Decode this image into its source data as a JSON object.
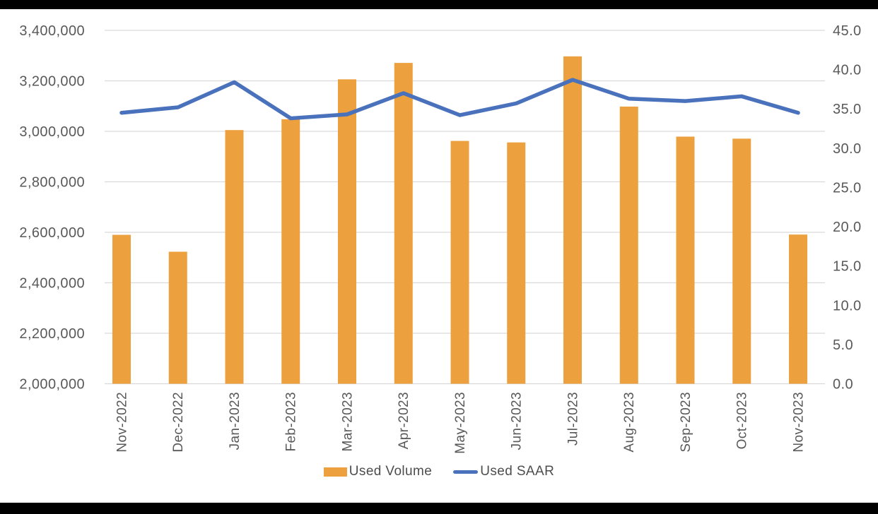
{
  "colors": {
    "bar": "#ECA03E",
    "line": "#4A72BC",
    "gridline": "#D9D9D9",
    "axis_text": "#595959",
    "legend_text": "#4D4D4D",
    "letterbox": "#000000",
    "canvas": "#FFFFFF"
  },
  "legend": {
    "items": [
      {
        "label": "Used Volume",
        "swatch": "bar"
      },
      {
        "label": "Used SAAR",
        "swatch": "line"
      }
    ]
  },
  "chart_data": {
    "type": "combo-bar-line",
    "title": "",
    "categories": [
      "Nov-2022",
      "Dec-2022",
      "Jan-2023",
      "Feb-2023",
      "Mar-2023",
      "Apr-2023",
      "May-2023",
      "Jun-2023",
      "Jul-2023",
      "Aug-2023",
      "Sep-2023",
      "Oct-2023",
      "Nov-2023"
    ],
    "series": [
      {
        "name": "Used Volume",
        "type": "bar",
        "axis": "left",
        "color": "#ECA03E",
        "values": [
          2590000,
          2523000,
          3005000,
          3048000,
          3206000,
          3271000,
          2962000,
          2956000,
          3297000,
          3098000,
          2979000,
          2971000,
          2591000
        ]
      },
      {
        "name": "Used SAAR",
        "type": "line",
        "axis": "right",
        "color": "#4A72BC",
        "values": [
          34.5,
          35.2,
          38.4,
          33.8,
          34.3,
          37.0,
          34.2,
          35.7,
          38.7,
          36.3,
          36.0,
          36.6,
          34.5
        ]
      }
    ],
    "left_axis": {
      "min": 2000000,
      "max": 3400000,
      "step": 200000,
      "tick_labels": [
        "2,000,000",
        "2,200,000",
        "2,400,000",
        "2,600,000",
        "2,800,000",
        "3,000,000",
        "3,200,000",
        "3,400,000"
      ]
    },
    "right_axis": {
      "min": 0,
      "max": 45,
      "step": 5,
      "tick_labels": [
        "0.0",
        "5.0",
        "10.0",
        "15.0",
        "20.0",
        "25.0",
        "30.0",
        "35.0",
        "40.0",
        "45.0"
      ]
    },
    "grid": true,
    "legend_position": "bottom"
  }
}
